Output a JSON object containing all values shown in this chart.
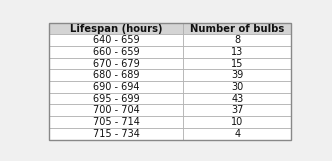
{
  "col1_header": "Lifespan (hours)",
  "col2_header": "Number of bulbs",
  "rows": [
    [
      "640 - 659",
      "8"
    ],
    [
      "660 - 659",
      "13"
    ],
    [
      "670 - 679",
      "15"
    ],
    [
      "680 - 689",
      "39"
    ],
    [
      "690 - 694",
      "30"
    ],
    [
      "695 - 699",
      "43"
    ],
    [
      "700 - 704",
      "37"
    ],
    [
      "705 - 714",
      "10"
    ],
    [
      "715 - 734",
      "4"
    ]
  ],
  "header_bg": "#d4d4d4",
  "row_bg": "#ffffff",
  "border_color": "#aaaaaa",
  "text_color": "#111111",
  "header_fontsize": 7.2,
  "row_fontsize": 7.0,
  "fig_bg": "#f0f0f0",
  "outer_border_color": "#888888"
}
